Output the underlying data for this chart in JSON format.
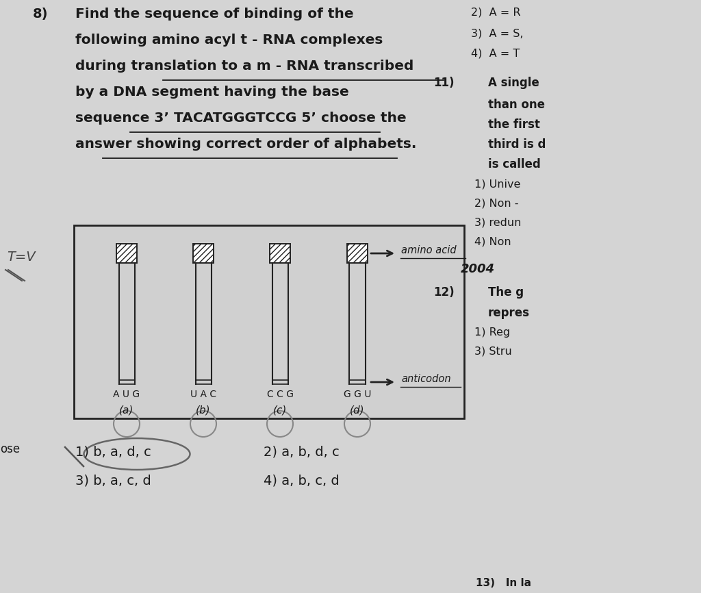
{
  "bg_color": "#d4d4d4",
  "text_color": "#1a1a1a",
  "box_color": "#222222",
  "trna_labels": [
    "A U G",
    "U A C",
    "C C G",
    "G G U"
  ],
  "trna_letters": [
    "(a)",
    "(b)",
    "(c)",
    "(d)"
  ],
  "amino_acid_label": "amino acid",
  "anticodon_label": "anticodon",
  "q_lines": [
    "Find the sequence of binding of the",
    "following amino acyl t - RNA complexes",
    "during translation to a m - RNA transcribed",
    "by a DNA segment having the base",
    "sequence 3’ TACATGGGTCCG 5’ choose the",
    "answer showing correct order of alphabets."
  ],
  "right_lines_top": [
    "2)  A = R",
    "3)  A = S,",
    "4)  A = T"
  ],
  "right_q11": "11)    A single",
  "right_q11_body": [
    "than one",
    "the first",
    "third is d",
    "is called"
  ],
  "right_q11_opts": [
    "1) Unive",
    "2) Non -",
    "3) redun",
    "4) Non"
  ],
  "year": "2004",
  "right_q12": "12)    The g",
  "right_q12_body": [
    "repres"
  ],
  "right_q12_opts": [
    "1) Reg",
    "3) Stru"
  ],
  "ans1": "1) b, a, d, c",
  "ans2": "2) a, b, d, c",
  "ans3": "3) b, a, c, d",
  "ans4": "4) a, b, c, d"
}
